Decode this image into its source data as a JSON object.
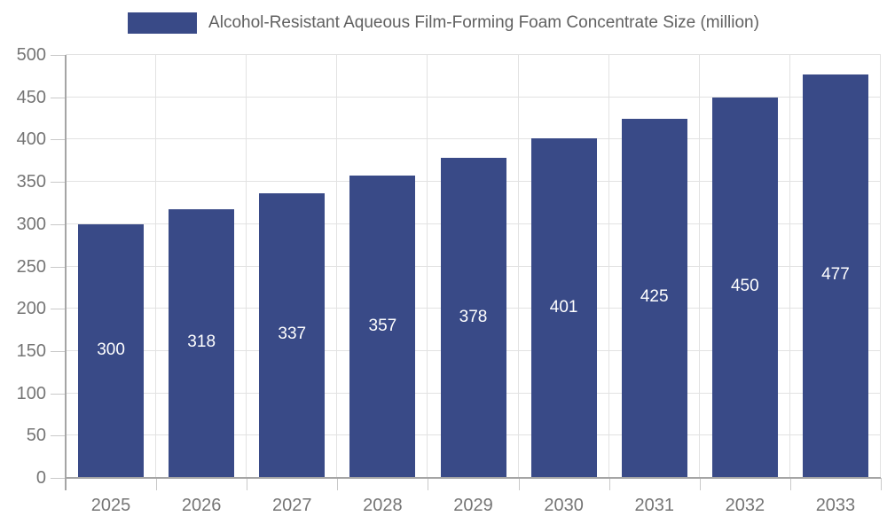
{
  "legend": {
    "label": "Alcohol-Resistant Aqueous Film-Forming Foam Concentrate Size (million)"
  },
  "chart_data": {
    "type": "bar",
    "title": "Alcohol-Resistant Aqueous Film-Forming Foam Concentrate Size (million)",
    "categories": [
      "2025",
      "2026",
      "2027",
      "2028",
      "2029",
      "2030",
      "2031",
      "2032",
      "2033"
    ],
    "values": [
      300,
      318,
      337,
      357,
      378,
      401,
      425,
      450,
      477
    ],
    "xlabel": "",
    "ylabel": "",
    "ylim": [
      0,
      500
    ],
    "yticks": [
      0,
      50,
      100,
      150,
      200,
      250,
      300,
      350,
      400,
      450,
      500
    ],
    "grid": true,
    "legend_position": "top",
    "value_labels": "inside-center",
    "colors": {
      "bar": "#394a87",
      "value_label": "#ffffff",
      "axis_label": "#757575",
      "legend_text": "#616161",
      "gridline": "#e2e2e2",
      "axis_line": "#a5a5a5",
      "tick": "#c9c9c9",
      "background": "#ffffff"
    }
  }
}
